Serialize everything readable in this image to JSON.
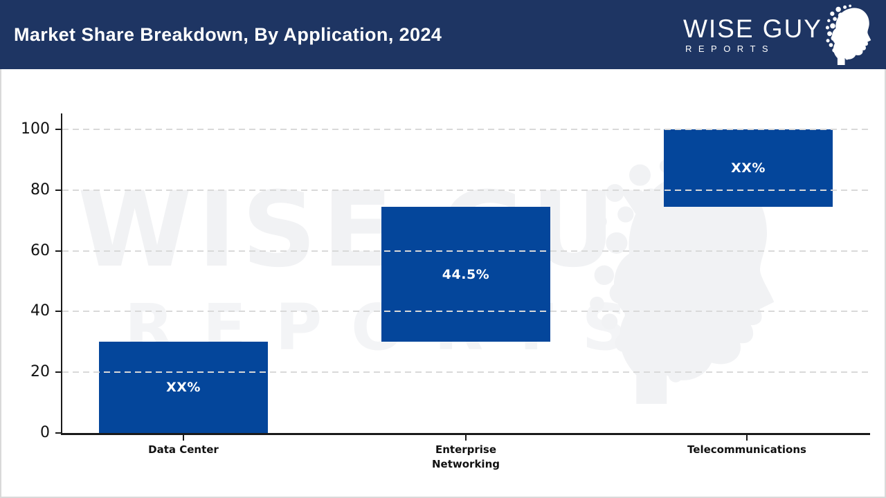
{
  "header": {
    "title": "Market Share Breakdown, By Application, 2024",
    "background_color": "#1e3563",
    "logo": {
      "line1": "WISE GUY",
      "line2": "REPORTS"
    }
  },
  "watermark": {
    "line1": "WISE GUY",
    "line2": "REPORTS"
  },
  "chart_data": {
    "type": "bar",
    "subtype": "floating-segment-breakdown",
    "title": "Market Share Breakdown, By Application, 2024",
    "categories": [
      "Data Center",
      "Enterprise\nNetworking",
      "Telecommunications"
    ],
    "segments": [
      {
        "category": "Data Center",
        "start": 0,
        "end": 30,
        "value": 30,
        "label": "XX%"
      },
      {
        "category": "Enterprise Networking",
        "start": 30,
        "end": 74.5,
        "value": 44.5,
        "label": "44.5%"
      },
      {
        "category": "Telecommunications",
        "start": 74.5,
        "end": 100,
        "value": 25.5,
        "label": "XX%"
      }
    ],
    "ylim": [
      0,
      100
    ],
    "yticks": [
      0,
      20,
      40,
      60,
      80,
      100
    ],
    "grid": "dashed horizontal, drawn above bars",
    "legend": "none",
    "xlabel": "",
    "ylabel": "",
    "bar_color": "#04469b",
    "bar_label_color": "#ffffff",
    "axis_color": "#1a1a1a",
    "gridline_color": "#d9d9d9"
  }
}
